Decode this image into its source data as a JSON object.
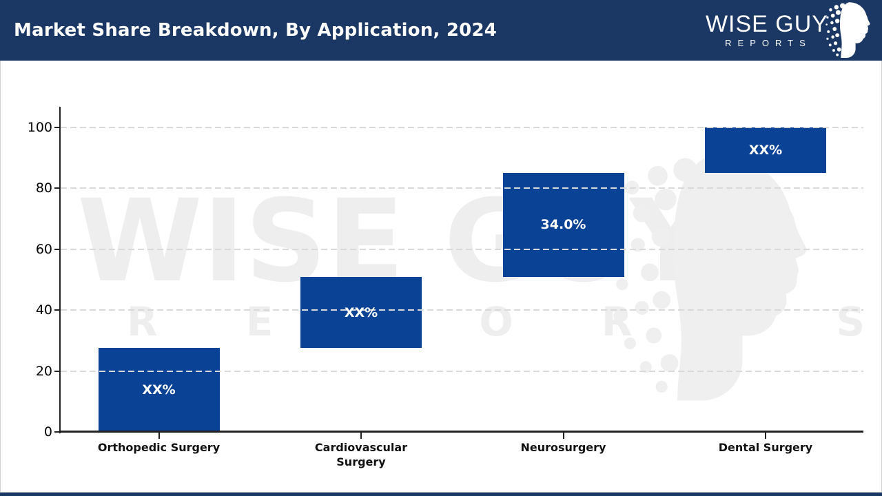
{
  "header": {
    "title": "Market Share Breakdown, By Application, 2024",
    "brand": {
      "line1": "WISE GUY",
      "line2": "REPORTS"
    }
  },
  "watermark": {
    "line1": "WISE GUY",
    "line2": "R E P O R T S"
  },
  "colors": {
    "header_bg": "#1b3764",
    "footer_bg": "#1b3764",
    "bar": "#0a4296",
    "value_label": "#ffffff",
    "gridline": "#d9d9d9",
    "axis": "#212121",
    "watermark": "#eeeeee"
  },
  "chart_data": {
    "type": "bar",
    "subtype": "waterfall-style floating segments totaling 100%",
    "title": "Market Share Breakdown, By Application, 2024",
    "categories": [
      "Orthopedic Surgery",
      "Cardiovascular Surgery",
      "Neurosurgery",
      "Dental Surgery"
    ],
    "segments": [
      {
        "category": "Orthopedic Surgery",
        "start": 0,
        "end": 27.5,
        "value": 27.5,
        "label": "XX%"
      },
      {
        "category": "Cardiovascular Surgery",
        "start": 27.5,
        "end": 51,
        "value": 23.5,
        "label": "XX%"
      },
      {
        "category": "Neurosurgery",
        "start": 51,
        "end": 85,
        "value": 34.0,
        "label": "34.0%"
      },
      {
        "category": "Dental Surgery",
        "start": 85,
        "end": 100,
        "value": 15.0,
        "label": "XX%"
      }
    ],
    "yticks": [
      0,
      20,
      40,
      60,
      80,
      100
    ],
    "ylim": [
      0,
      107
    ],
    "xlabel": "",
    "ylabel": "",
    "legend": "none",
    "grid": "horizontal dashed lines drawn above bars",
    "note": "XX% labels are masked values in the source image"
  }
}
